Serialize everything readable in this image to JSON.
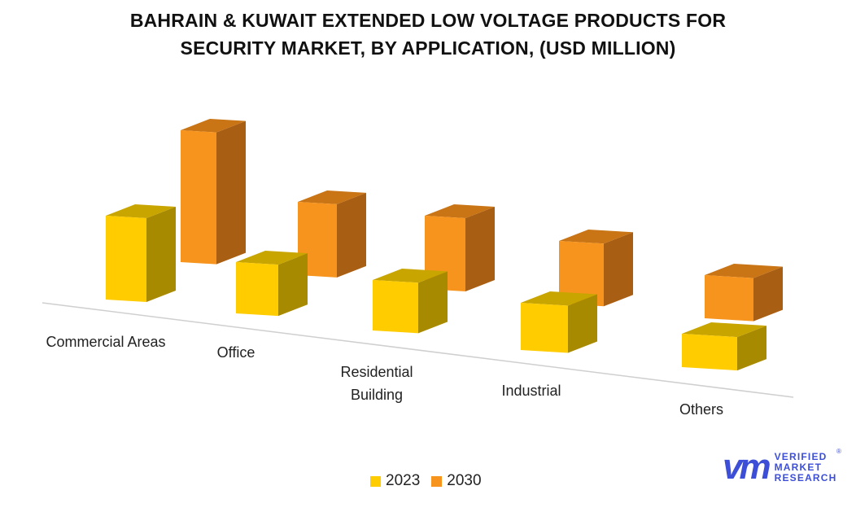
{
  "chart_data": {
    "type": "bar",
    "title": "BAHRAIN & KUWAIT EXTENDED LOW VOLTAGE PRODUCTS FOR SECURITY MARKET, BY APPLICATION, (USD MILLION)",
    "title_lines": [
      "BAHRAIN & KUWAIT EXTENDED LOW VOLTAGE PRODUCTS FOR",
      "SECURITY MARKET, BY APPLICATION, (USD MILLION)"
    ],
    "style": "3d-clustered-column",
    "categories": [
      "Commercial Areas",
      "Office",
      "Residential Building",
      "Industrial",
      "Others"
    ],
    "series": [
      {
        "name": "2023",
        "color": "#FFCC00",
        "values": [
          103,
          63,
          62,
          58,
          41
        ]
      },
      {
        "name": "2030",
        "color": "#F7941D",
        "values": [
          162,
          90,
          90,
          77,
          53
        ]
      }
    ],
    "xlabel": "",
    "ylabel": "",
    "y_axis_shown": false,
    "grid": false,
    "legend": "bottom"
  },
  "logo": {
    "line1": "VERIFIED",
    "line2": "MARKET",
    "line3": "RESEARCH",
    "mark": "vm",
    "registered": "®"
  }
}
